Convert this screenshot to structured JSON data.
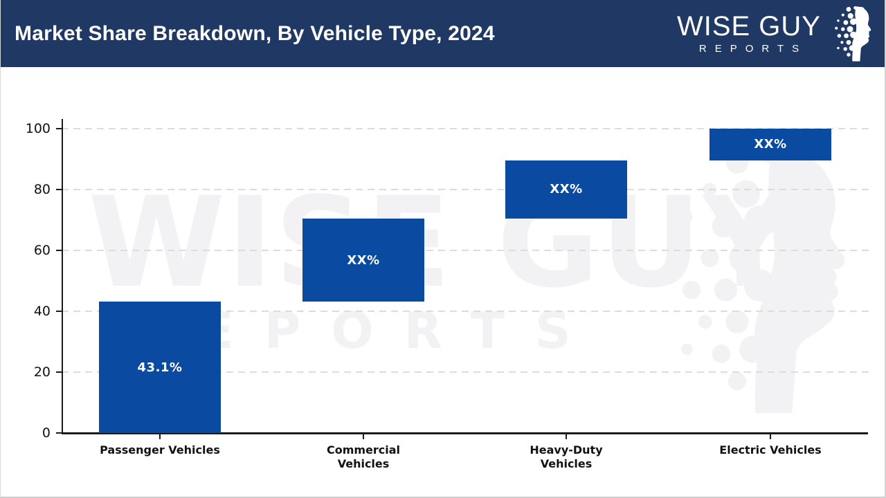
{
  "header": {
    "title": "Market Share Breakdown, By Vehicle Type, 2024",
    "bg_color": "#1F3864",
    "logo": {
      "line1": "WISE GUY",
      "line2": "REPORTS"
    }
  },
  "watermark": {
    "line1": "WISE GUY",
    "line2": "REPORTS"
  },
  "chart_data": {
    "type": "bar",
    "subtype": "waterfall",
    "title": "Market Share Breakdown, By Vehicle Type, 2024",
    "xlabel": "",
    "ylabel": "",
    "ylim": [
      0,
      100
    ],
    "yticks": [
      0,
      20,
      40,
      60,
      80,
      100
    ],
    "grid": "horizontal dashed",
    "legend": null,
    "bar_color": "#0B4AA1",
    "label_color": "#ffffff",
    "categories": [
      "Passenger Vehicles",
      "Commercial Vehicles",
      "Heavy-Duty Vehicles",
      "Electric Vehicles"
    ],
    "category_label_lines": [
      [
        "Passenger Vehicles"
      ],
      [
        "Commercial",
        "Vehicles"
      ],
      [
        "Heavy-Duty",
        "Vehicles"
      ],
      [
        "Electric Vehicles"
      ]
    ],
    "segments": [
      {
        "category": "Passenger Vehicles",
        "start": 0,
        "end": 43.1,
        "value": 43.1,
        "label": "43.1%"
      },
      {
        "category": "Commercial Vehicles",
        "start": 43.1,
        "end": 70.5,
        "value": 27.4,
        "label": "XX%"
      },
      {
        "category": "Heavy-Duty Vehicles",
        "start": 70.5,
        "end": 89.6,
        "value": 19.1,
        "label": "XX%"
      },
      {
        "category": "Electric Vehicles",
        "start": 89.6,
        "end": 100,
        "value": 10.4,
        "label": "XX%"
      }
    ]
  }
}
